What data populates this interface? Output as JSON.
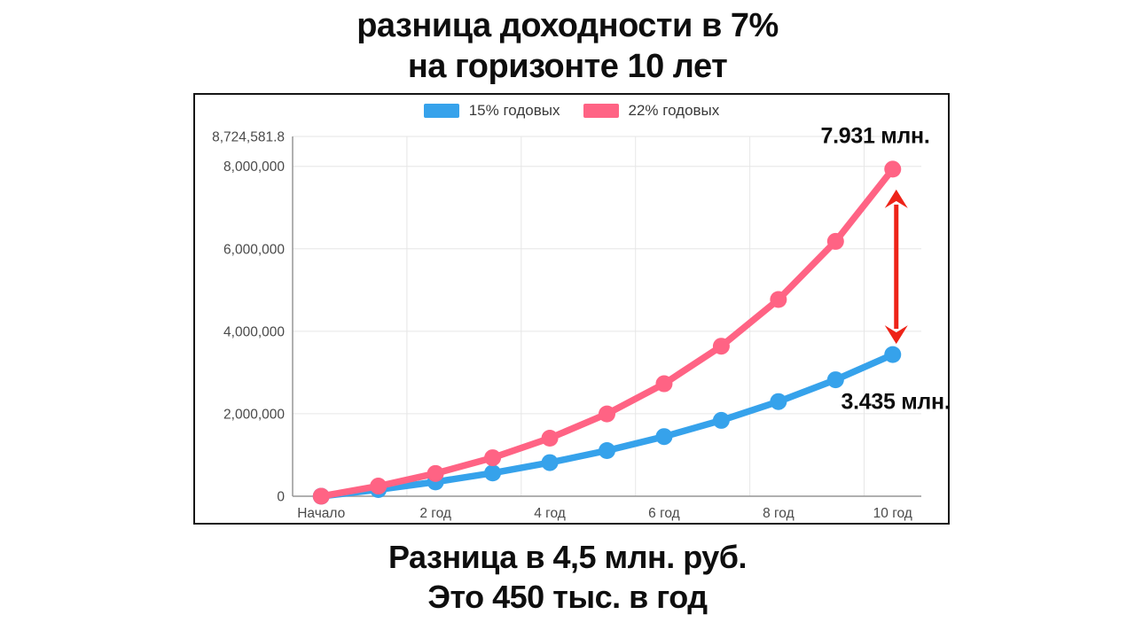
{
  "title": {
    "line1": "разница доходности в 7%",
    "line2": "на горизонте 10 лет"
  },
  "caption": {
    "line1": "Разница в 4,5 млн. руб.",
    "line2": "Это 450 тыс. в год"
  },
  "colors": {
    "blue": "#36a2eb",
    "pink": "#ff6384",
    "arrow_red": "#ee2318",
    "grid": "#e6e6e6",
    "axis": "#969696",
    "tick_text": "#4a4a4a",
    "text": "#0e0e0e"
  },
  "chart_data": {
    "type": "line",
    "x": [
      0,
      1,
      2,
      3,
      4,
      5,
      6,
      7,
      8,
      9,
      10
    ],
    "x_ticks": [
      {
        "x": 0,
        "label": "Начало"
      },
      {
        "x": 2,
        "label": "2 год"
      },
      {
        "x": 4,
        "label": "4 год"
      },
      {
        "x": 6,
        "label": "6 год"
      },
      {
        "x": 8,
        "label": "8 год"
      },
      {
        "x": 10,
        "label": "10 год"
      }
    ],
    "y_ticks": [
      {
        "value": 8724581.8,
        "label": "8,724,581.8"
      },
      {
        "value": 8000000,
        "label": "8,000,000"
      },
      {
        "value": 6000000,
        "label": "6,000,000"
      },
      {
        "value": 4000000,
        "label": "4,000,000"
      },
      {
        "value": 2000000,
        "label": "2,000,000"
      },
      {
        "value": 0,
        "label": "0"
      }
    ],
    "ylim": [
      0,
      8724581.8
    ],
    "grid": true,
    "legend_position": "top",
    "series": [
      {
        "name": "15% годовых",
        "color": "#36a2eb",
        "values": [
          0,
          161000,
          347000,
          564000,
          815000,
          1107000,
          1446000,
          1839000,
          2295000,
          2824000,
          3435000
        ]
      },
      {
        "name": "22% годовых",
        "color": "#ff6384",
        "values": [
          0,
          246000,
          552000,
          933000,
          1407000,
          1996000,
          2728000,
          3638000,
          4771000,
          6180000,
          7931438
        ]
      }
    ],
    "annotations": [
      {
        "text": "7.931 млн.",
        "series": "22% годовых",
        "x": 10
      },
      {
        "text": "3.435 млн.",
        "series": "15% годовых",
        "x": 10
      }
    ],
    "diff_arrow": {
      "between": [
        "22% годовых",
        "15% годовых"
      ],
      "at_x": 10,
      "color": "#ee2318"
    }
  }
}
